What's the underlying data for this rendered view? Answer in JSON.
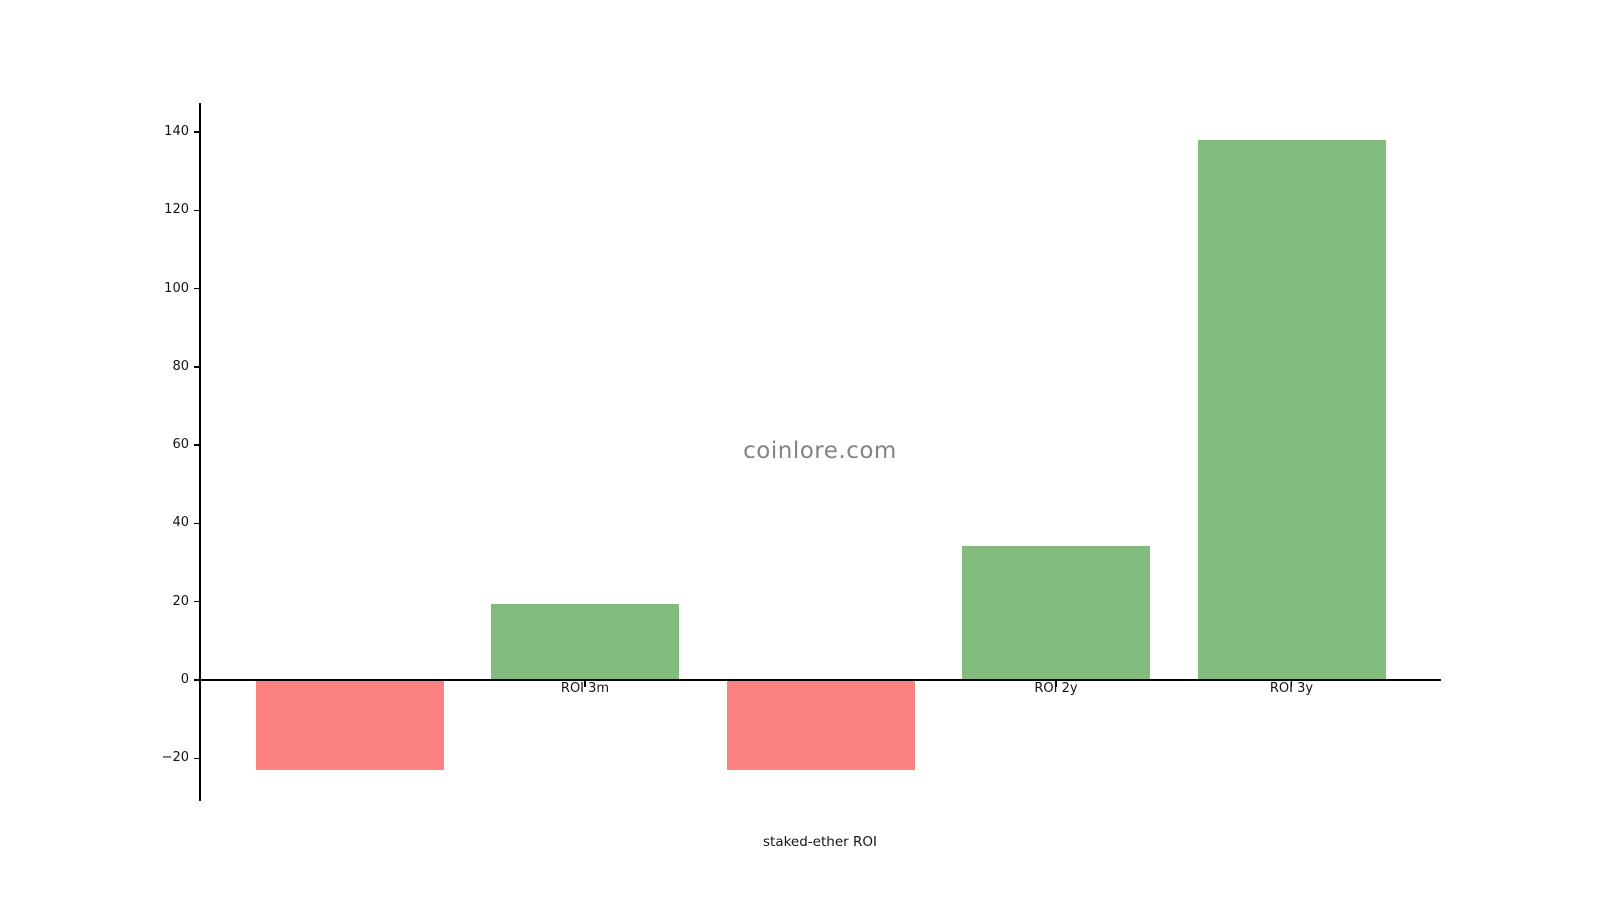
{
  "watermark": "coinlore.com",
  "title": "staked-ether ROI",
  "colors": {
    "positive": "#81bc7d",
    "negative": "#fc8181",
    "axis": "#000000",
    "text": "#151515",
    "watermark": "#848484",
    "background": "#ffffff"
  },
  "chart_data": {
    "type": "bar",
    "title": "staked-ether ROI",
    "watermark": "coinlore.com",
    "categories": [
      "",
      "ROI 3m",
      "",
      "ROI 2y",
      "ROI 3y"
    ],
    "values": [
      -23,
      19.5,
      -23,
      34.2,
      137.9
    ],
    "bar_colors": [
      "negative",
      "positive",
      "negative",
      "positive",
      "positive"
    ],
    "yticks": [
      140,
      120,
      100,
      80,
      60,
      40,
      20,
      0,
      -20
    ],
    "ylim": [
      -31,
      147.5
    ],
    "xlabel": "",
    "ylabel": "",
    "grid": false,
    "legend": null,
    "notes": "x tick labels of negative (red) bars are hidden behind the bars"
  }
}
